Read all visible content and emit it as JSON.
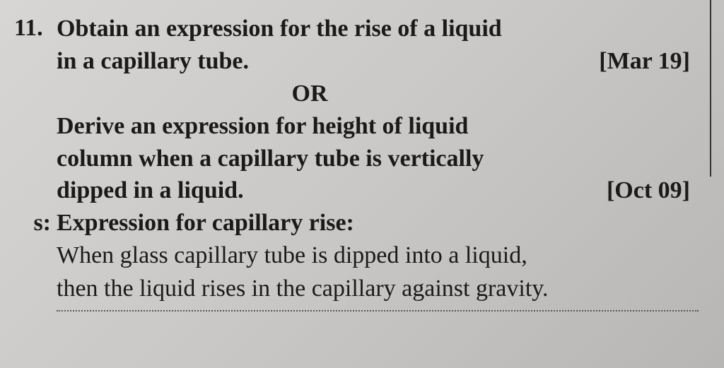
{
  "question": {
    "number": "11.",
    "prompt_line1": "Obtain an expression for the rise of a liquid",
    "prompt_line2_left": "in a capillary tube.",
    "tag1": "[Mar 19]",
    "or": "OR",
    "alt_line1": "Derive an expression for height of liquid",
    "alt_line2": "column when a capillary tube is vertically",
    "alt_line3_left": "dipped in a liquid.",
    "tag2": "[Oct 09]"
  },
  "answer": {
    "label": "s:",
    "heading": "Expression for capillary rise:",
    "body_line1": "When glass capillary tube is dipped into a liquid,",
    "body_line2": "then the liquid rises in the capillary against gravity."
  },
  "style": {
    "background_gradient_start": "#d8d6d4",
    "background_gradient_end": "#b8b6b4",
    "text_color": "#1a1a1a",
    "font_family": "Georgia, Times New Roman, serif",
    "base_fontsize_pt": 26,
    "line_height": 1.35,
    "dotted_separator_color": "#555",
    "right_border_color": "#333"
  }
}
